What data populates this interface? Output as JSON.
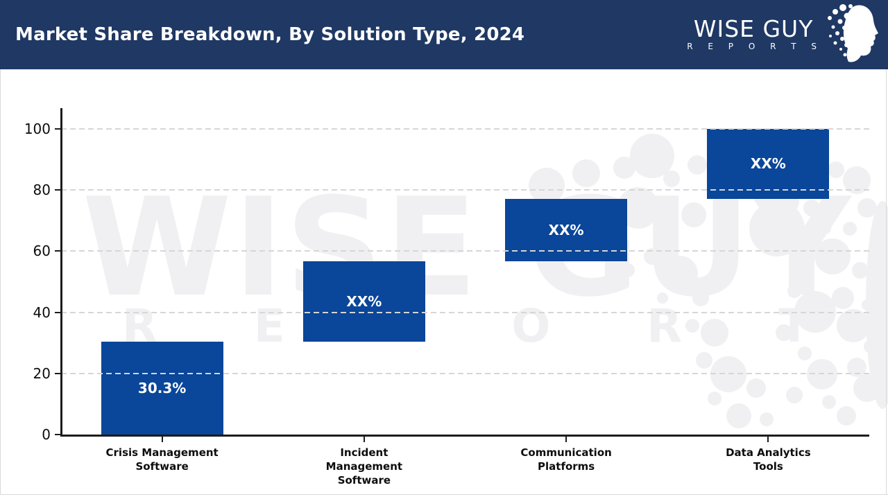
{
  "header": {
    "title": "Market Share Breakdown, By Solution Type, 2024",
    "logo": {
      "line1": "WISE GUY",
      "line2": "R E P O R T S"
    }
  },
  "watermark": {
    "line1": "WISE GUY",
    "line2": "R E P O R T S"
  },
  "colors": {
    "header_bg": "#1f3864",
    "bar": "#0a4699",
    "grid": "#d6d6d6",
    "axis": "#1c1c1c",
    "bar_label": "#ffffff",
    "watermark": "#f0f0f2"
  },
  "chart_data": {
    "type": "bar",
    "subtype": "waterfall",
    "title": "Market Share Breakdown, By Solution Type, 2024",
    "categories": [
      "Crisis Management\nSoftware",
      "Incident\nManagement\nSoftware",
      "Communication\nPlatforms",
      "Data Analytics\nTools"
    ],
    "segments": [
      {
        "start": 0,
        "end": 30.3,
        "label": "30.3%"
      },
      {
        "start": 30.3,
        "end": 56.7,
        "label": "XX%"
      },
      {
        "start": 56.7,
        "end": 77.1,
        "label": "XX%"
      },
      {
        "start": 77.1,
        "end": 100,
        "label": "XX%"
      }
    ],
    "yticks": [
      0,
      20,
      40,
      60,
      80,
      100
    ],
    "ylim": [
      0,
      105
    ],
    "xlabel": "",
    "ylabel": "",
    "grid": "dashed-horizontal",
    "legend": "none"
  }
}
